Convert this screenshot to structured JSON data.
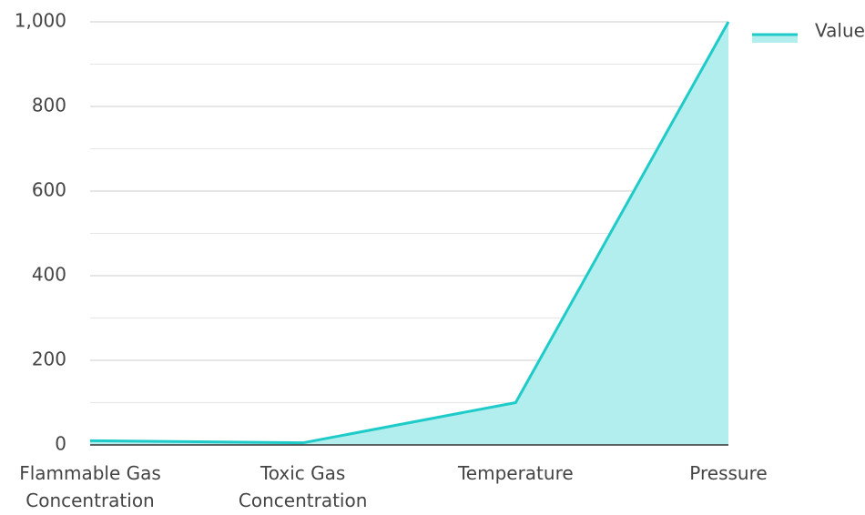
{
  "chart_data": {
    "type": "area",
    "categories": [
      "Flammable Gas Concentration",
      "Toxic Gas Concentration",
      "Temperature",
      "Pressure"
    ],
    "series": [
      {
        "name": "Value",
        "color": "#1ecbc8",
        "fill": "#b2eeee",
        "values": [
          10,
          5,
          100,
          1000
        ]
      }
    ],
    "ylim": [
      0,
      1000
    ],
    "yticks": [
      0,
      200,
      400,
      600,
      800,
      {
        "value": 1000,
        "label": "1,000"
      }
    ],
    "yminorticks": [
      100,
      300,
      500,
      700,
      900
    ],
    "grid": true,
    "legend": "top-right"
  }
}
